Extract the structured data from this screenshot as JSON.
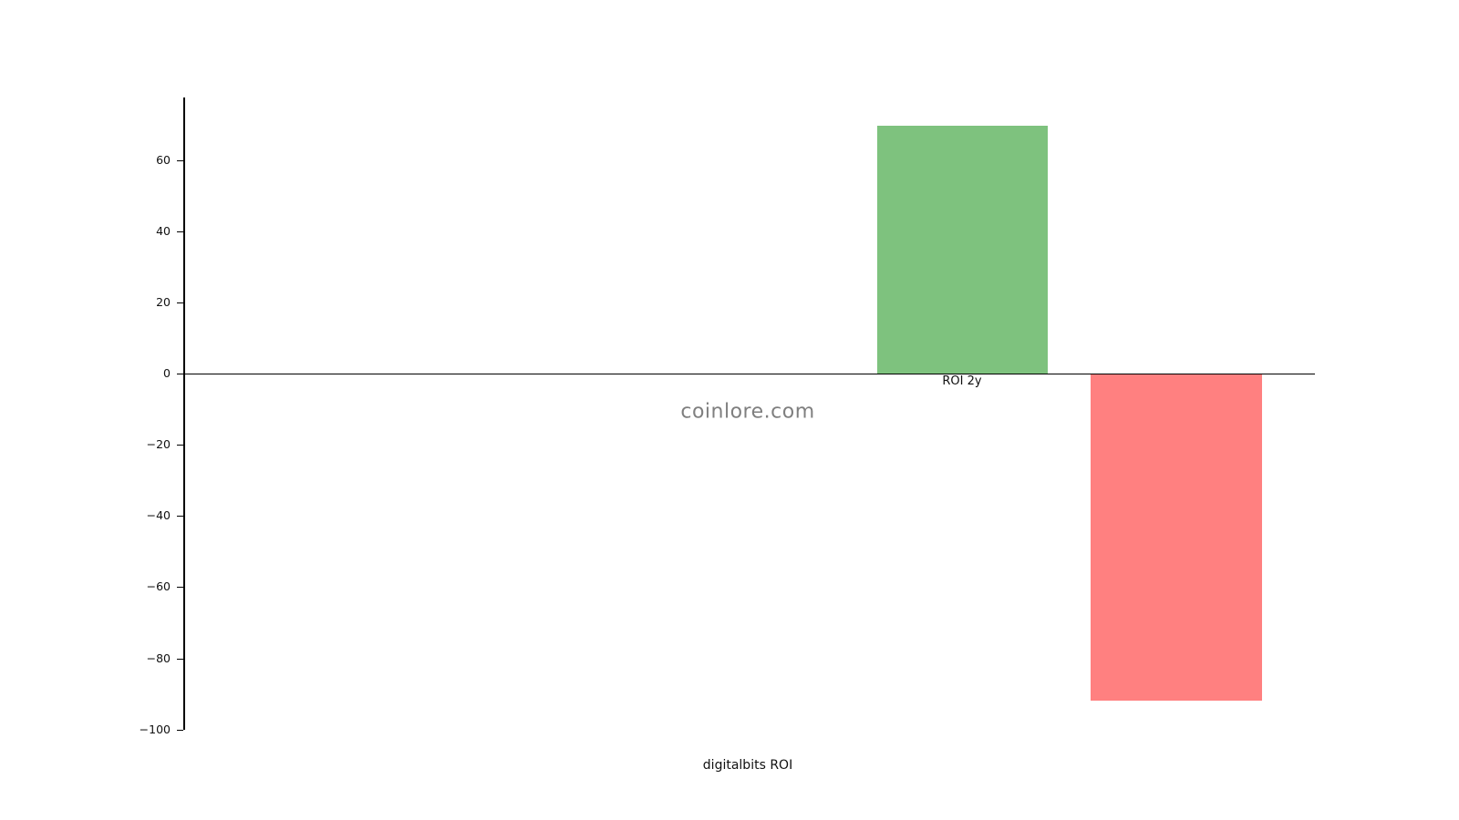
{
  "chart": {
    "watermark": "coinlore.com",
    "colors": {
      "positive_bar": "#7ec27e",
      "negative_bar": "#ff8080",
      "axis": "#000000",
      "text": "#111111",
      "watermark": "#7f7f7f",
      "background": "#ffffff"
    }
  },
  "chart_data": {
    "type": "bar",
    "title": "",
    "xlabel": "digitalbits ROI",
    "ylabel": "",
    "categories": [
      "ROI 2y",
      ""
    ],
    "values": [
      69.5,
      -91.6
    ],
    "bar_colors": [
      "#7ec27e",
      "#ff8080"
    ],
    "yticks": [
      60,
      40,
      20,
      0,
      -20,
      -40,
      -60,
      -80,
      -100
    ],
    "ytick_labels": [
      "60",
      "40",
      "20",
      "0",
      "−20",
      "−40",
      "−60",
      "−80",
      "−100"
    ],
    "ylim": [
      -100,
      77.5
    ],
    "grid": false,
    "legend": false,
    "annotations": [
      "coinlore.com"
    ]
  }
}
